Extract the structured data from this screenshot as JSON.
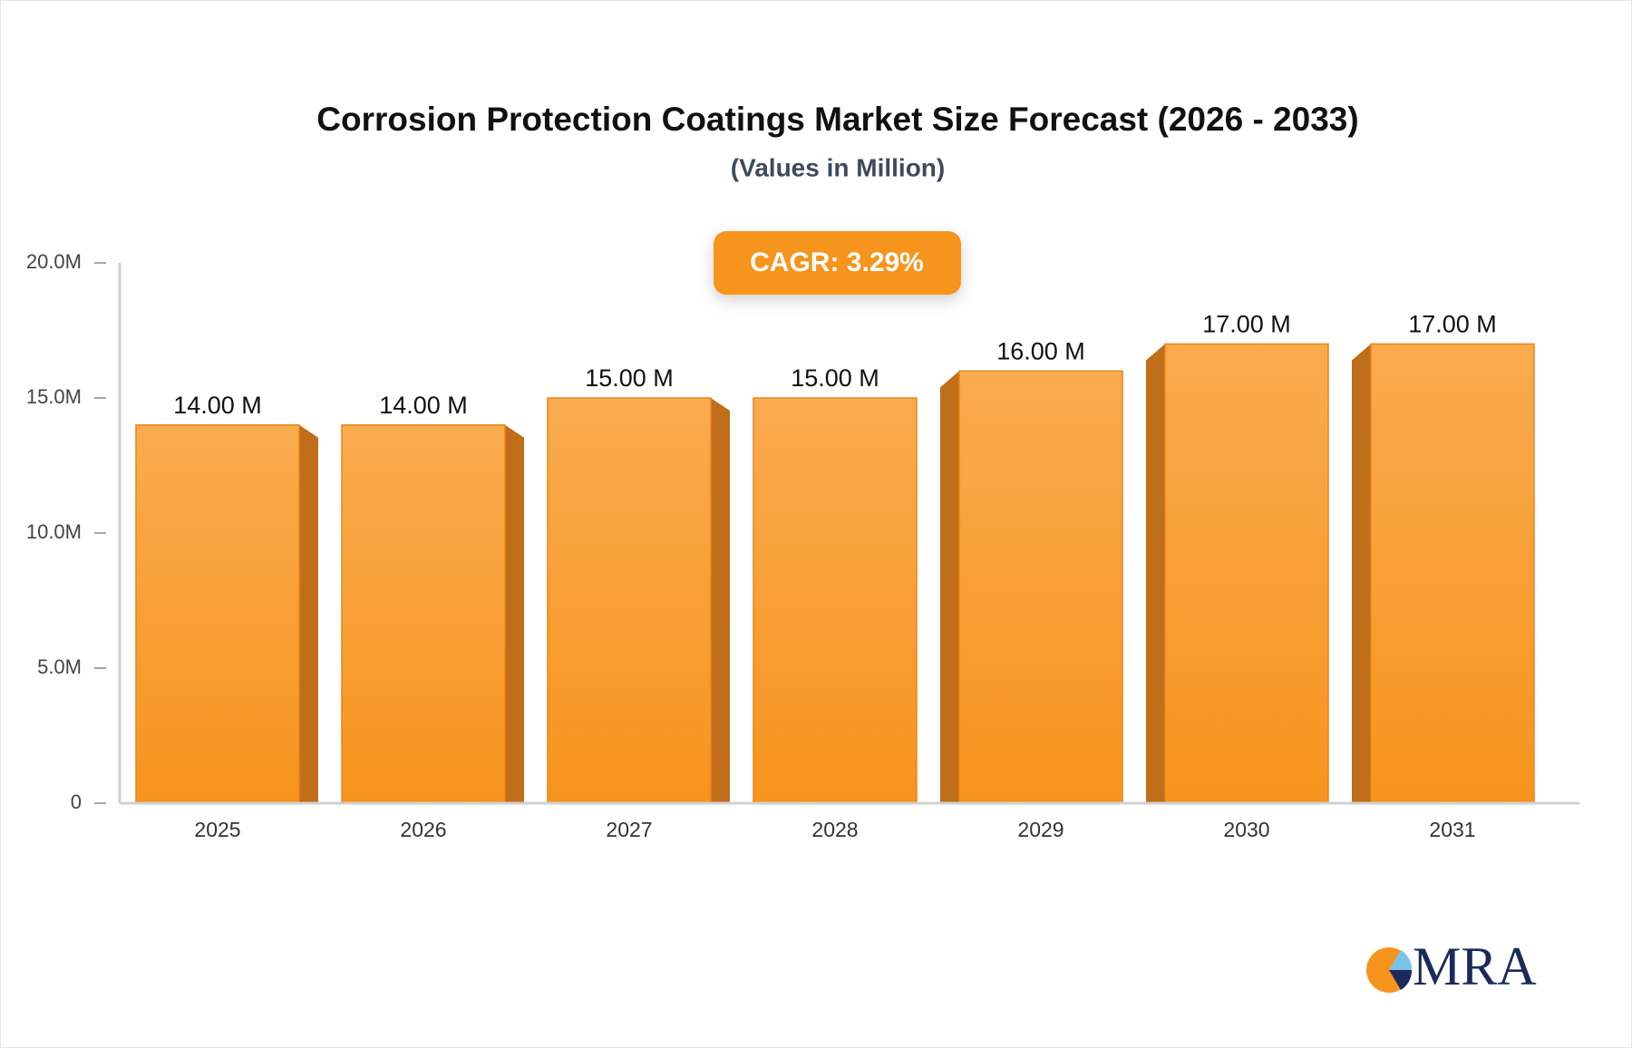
{
  "chart_data": {
    "type": "bar",
    "title": "Corrosion Protection Coatings Market Size Forecast (2026 - 2033)",
    "subtitle": "(Values in Million)",
    "annotation": "CAGR: 3.29%",
    "categories": [
      "2025",
      "2026",
      "2027",
      "2028",
      "2029",
      "2030",
      "2031"
    ],
    "values": [
      14,
      14,
      15,
      15,
      16,
      17,
      17
    ],
    "value_labels": [
      "14.00 M",
      "14.00 M",
      "15.00 M",
      "15.00 M",
      "16.00 M",
      "17.00 M",
      "17.00 M"
    ],
    "color": "#f7941d",
    "ylim": [
      0,
      20
    ],
    "yticks": [
      0,
      {
        "value": 5,
        "label": "5.0M"
      },
      {
        "value": 10,
        "label": "10.0M"
      },
      {
        "value": 15,
        "label": "15.0M"
      },
      {
        "value": 20,
        "label": "20.0M"
      }
    ]
  },
  "logo_text": "MRA"
}
